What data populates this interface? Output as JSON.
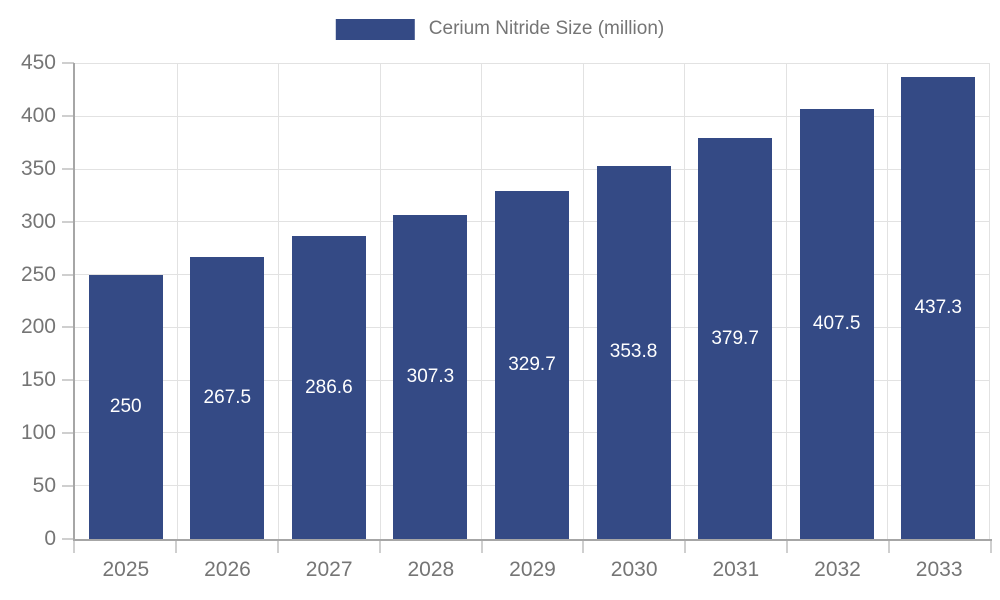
{
  "chart_data": {
    "type": "bar",
    "title": "",
    "legend_label": "Cerium Nitride Size (million)",
    "legend_position": "top-center",
    "categories": [
      "2025",
      "2026",
      "2027",
      "2028",
      "2029",
      "2030",
      "2031",
      "2032",
      "2033"
    ],
    "values": [
      250,
      267.5,
      286.6,
      307.3,
      329.7,
      353.8,
      379.7,
      407.5,
      437.3
    ],
    "value_labels": [
      "250",
      "267.5",
      "286.6",
      "307.3",
      "329.7",
      "353.8",
      "379.7",
      "407.5",
      "437.3"
    ],
    "xlabel": "",
    "ylabel": "",
    "ylim": [
      0,
      450
    ],
    "y_ticks": [
      0,
      50,
      100,
      150,
      200,
      250,
      300,
      350,
      400,
      450
    ],
    "grid": true
  },
  "colors": {
    "bar": "#344a85",
    "axis_line": "#a6a6a6",
    "gridline": "#e2e2e2",
    "tick": "#cfcfcf",
    "axis_text": "#757575",
    "value_text": "#ffffff"
  }
}
